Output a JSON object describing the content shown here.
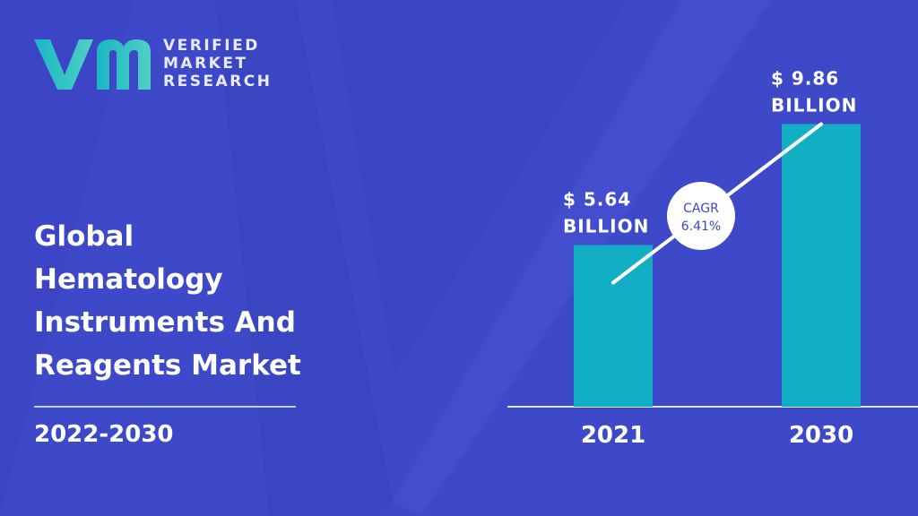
{
  "brand": {
    "line1": "VERIFIED",
    "line2": "MARKET",
    "line3": "RESEARCH"
  },
  "title": {
    "line1": "Global",
    "line2": "Hematology",
    "line3": "Instruments And",
    "line4": "Reagents Market"
  },
  "period": "2022-2030",
  "colors": {
    "background": "#3b45c6",
    "bar": "#12aec3",
    "logo_gradient_start": "#1ab6c2",
    "logo_gradient_end": "#4fd1c5"
  },
  "chart_data": {
    "type": "bar",
    "categories": [
      "2021",
      "2030"
    ],
    "values": [
      5.64,
      9.86
    ],
    "data_labels": [
      [
        "$ 5.64",
        "BILLION"
      ],
      [
        "$ 9.86",
        "BILLION"
      ]
    ],
    "annotation": {
      "label": "CAGR",
      "value": "6.41%"
    },
    "ylim": [
      0,
      12
    ]
  }
}
